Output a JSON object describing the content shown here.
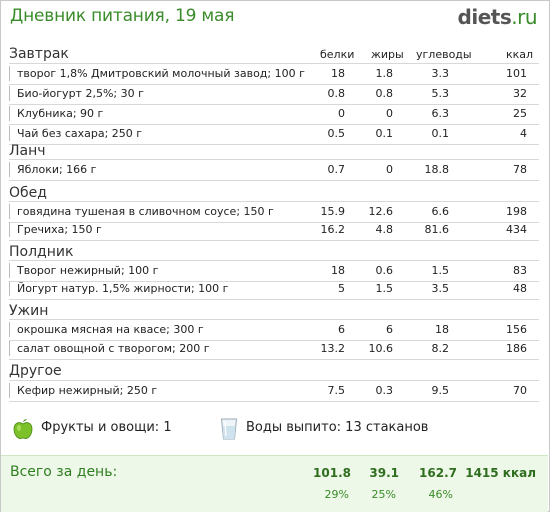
{
  "header": {
    "title": "Дневник питания, 19 мая",
    "brand_main": "diets",
    "brand_tld": ".ru"
  },
  "columns": {
    "protein": "белки",
    "fat": "жиры",
    "carbs": "углеводы",
    "kcal": "ккал"
  },
  "meals": [
    {
      "name": "Завтрак",
      "items": [
        {
          "name": "творог 1,8% Дмитровский молочный завод; 100 г",
          "p": "18",
          "f": "1.8",
          "c": "3.3",
          "k": "101"
        },
        {
          "name": "Био-йогурт 2,5%; 30 г",
          "p": "0.8",
          "f": "0.8",
          "c": "5.3",
          "k": "32"
        },
        {
          "name": "Клубника; 90 г",
          "p": "0",
          "f": "0",
          "c": "6.3",
          "k": "25"
        },
        {
          "name": "Чай без сахара; 250 г",
          "p": "0.5",
          "f": "0.1",
          "c": "0.1",
          "k": "4"
        }
      ]
    },
    {
      "name": "Ланч",
      "items": [
        {
          "name": "Яблоки; 166 г",
          "p": "0.7",
          "f": "0",
          "c": "18.8",
          "k": "78"
        }
      ]
    },
    {
      "name": "Обед",
      "items": [
        {
          "name": "говядина тушеная в сливочном соусе; 150 г",
          "p": "15.9",
          "f": "12.6",
          "c": "6.6",
          "k": "198"
        },
        {
          "name": "Гречиха; 150 г",
          "p": "16.2",
          "f": "4.8",
          "c": "81.6",
          "k": "434"
        }
      ]
    },
    {
      "name": "Полдник",
      "items": [
        {
          "name": "Творог нежирный; 100 г",
          "p": "18",
          "f": "0.6",
          "c": "1.5",
          "k": "83"
        },
        {
          "name": "Йогурт натур. 1,5% жирности; 100 г",
          "p": "5",
          "f": "1.5",
          "c": "3.5",
          "k": "48"
        }
      ]
    },
    {
      "name": "Ужин",
      "items": [
        {
          "name": "окрошка мясная на квасе; 300 г",
          "p": "6",
          "f": "6",
          "c": "18",
          "k": "156"
        },
        {
          "name": "салат овощной с творогом; 200 г",
          "p": "13.2",
          "f": "10.6",
          "c": "8.2",
          "k": "186"
        }
      ]
    },
    {
      "name": "Другое",
      "items": [
        {
          "name": "Кефир нежирный; 250 г",
          "p": "7.5",
          "f": "0.3",
          "c": "9.5",
          "k": "70"
        }
      ]
    }
  ],
  "extras": {
    "fruits": "Фрукты и овощи: 1",
    "water": "Воды выпито: 13 стаканов",
    "fruit_icon": "green-apple-icon",
    "water_icon": "glass-of-water-icon"
  },
  "total": {
    "label": "Всего за день:",
    "protein": "101.8",
    "fat": "39.1",
    "carbs": "162.7",
    "kcal": "1415 ккал",
    "protein_pct": "29%",
    "fat_pct": "25%",
    "carbs_pct": "46%"
  }
}
